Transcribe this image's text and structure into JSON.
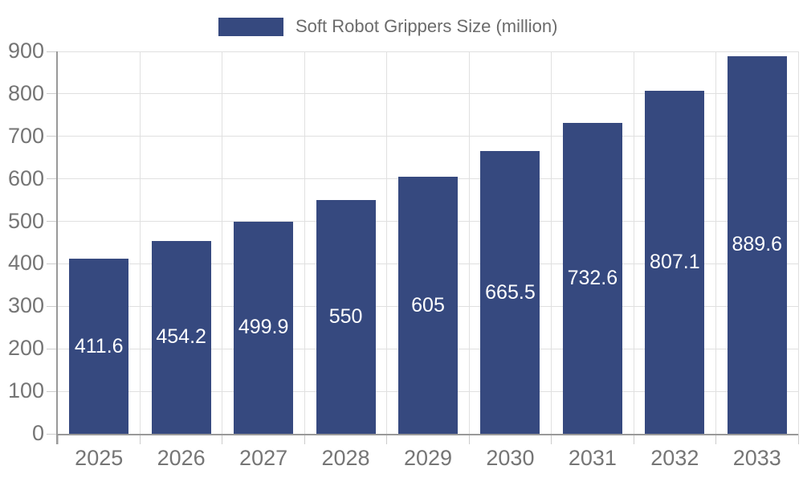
{
  "legend": {
    "label": "Soft Robot Grippers Size (million)"
  },
  "colors": {
    "bar": "#36497F",
    "axis_label": "#757575",
    "legend_text": "#6B6B6B",
    "gridline": "#E0E0E0",
    "tick": "#CCCCCC",
    "axis_line": "#999999",
    "bar_label": "#FFFFFF",
    "background": "#FFFFFF"
  },
  "chart_data": {
    "type": "bar",
    "title": "Soft Robot Grippers Size (million)",
    "categories": [
      "2025",
      "2026",
      "2027",
      "2028",
      "2029",
      "2030",
      "2031",
      "2032",
      "2033"
    ],
    "values": [
      411.6,
      454.2,
      499.9,
      550,
      605,
      665.5,
      732.6,
      807.1,
      889.6
    ],
    "series": [
      {
        "name": "Soft Robot Grippers Size (million)",
        "values": [
          411.6,
          454.2,
          499.9,
          550,
          605,
          665.5,
          732.6,
          807.1,
          889.6
        ]
      }
    ],
    "xlabel": "",
    "ylabel": "",
    "ylim": [
      0,
      900
    ],
    "ytick_step": 100,
    "grid": true,
    "legend_position": "top",
    "value_labels": "inside-center-white"
  }
}
